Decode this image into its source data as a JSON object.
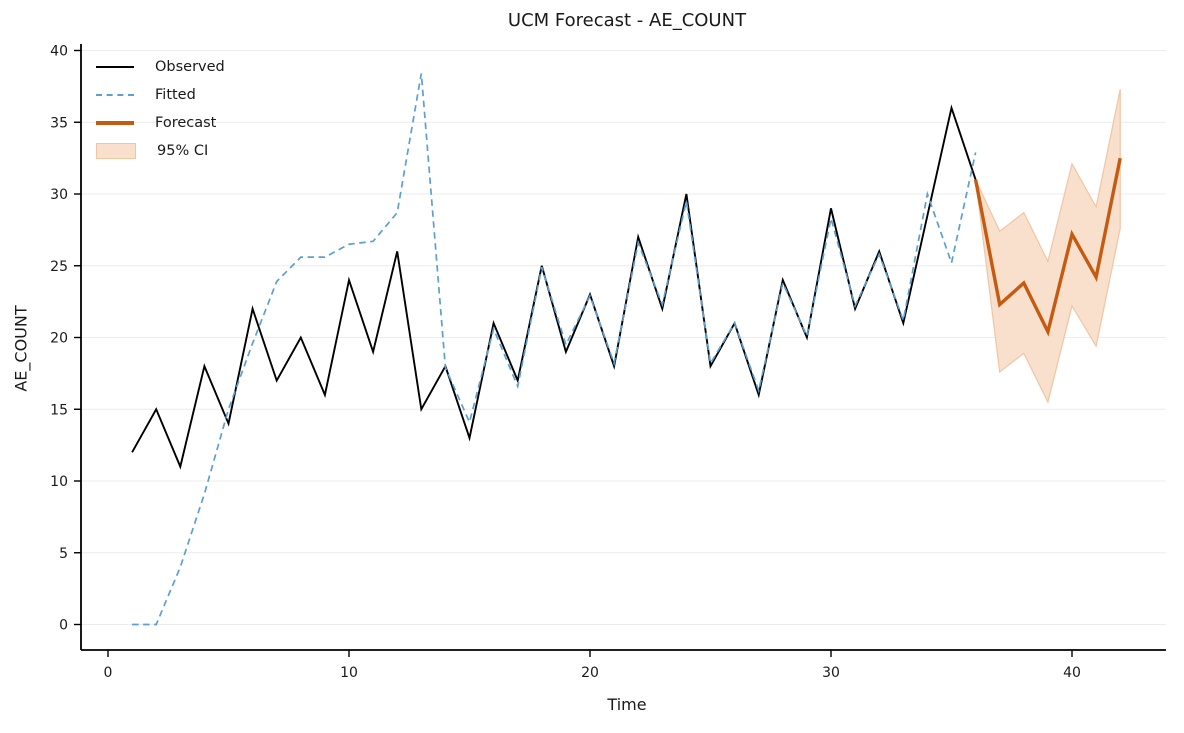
{
  "chart_data": {
    "type": "line",
    "title": "UCM Forecast - AE_COUNT",
    "xlabel": "Time",
    "ylabel": "AE_COUNT",
    "xlim": [
      -1.1,
      43.9
    ],
    "ylim": [
      -1.8,
      40.5
    ],
    "xticks": [
      0,
      10,
      20,
      30,
      40
    ],
    "yticks": [
      0,
      5,
      10,
      15,
      20,
      25,
      30,
      35,
      40
    ],
    "grid": "horizontal-only",
    "grid_color": "#ececec",
    "legend_position": "upper-left",
    "legend": {
      "entries": [
        {
          "label": "Observed",
          "swatch": "line-solid",
          "color": "#000000"
        },
        {
          "label": "Fitted",
          "swatch": "line-dashed",
          "color": "#5C9FD1"
        },
        {
          "label": "Forecast",
          "swatch": "line-solid-thick",
          "color": "#C55A11"
        },
        {
          "label": "95% CI",
          "swatch": "filled-rect",
          "color": "#F9E0CC",
          "edge_color": "#F0C5A2"
        }
      ]
    },
    "series": [
      {
        "name": "Observed",
        "kind": "line",
        "color": "#000000",
        "style": "solid",
        "width": 1.9,
        "x": [
          1,
          2,
          3,
          4,
          5,
          6,
          7,
          8,
          9,
          10,
          11,
          12,
          13,
          14,
          15,
          16,
          17,
          18,
          19,
          20,
          21,
          22,
          23,
          24,
          25,
          26,
          27,
          28,
          29,
          30,
          31,
          32,
          33,
          34,
          35,
          36
        ],
        "y": [
          12,
          15,
          11,
          18,
          14,
          22,
          17,
          20,
          16,
          24,
          19,
          26,
          15,
          18,
          13,
          21,
          17,
          25,
          19,
          23,
          18,
          27,
          22,
          30,
          18,
          21,
          16,
          24,
          20,
          29,
          22,
          26,
          21,
          28.5,
          36,
          31
        ]
      },
      {
        "name": "Fitted",
        "kind": "line",
        "color": "#5C9FD1",
        "style": "dashed",
        "width": 1.7,
        "x": [
          1,
          2,
          3,
          4,
          5,
          6,
          7,
          8,
          9,
          10,
          11,
          12,
          13,
          14,
          15,
          16,
          17,
          18,
          19,
          20,
          21,
          22,
          23,
          24,
          25,
          26,
          27,
          28,
          29,
          30,
          31,
          32,
          33,
          34,
          35,
          36
        ],
        "y": [
          0,
          0,
          4,
          9.1,
          15,
          19.6,
          23.9,
          25.6,
          25.6,
          26.5,
          26.7,
          28.7,
          38.4,
          17.9,
          14.1,
          20.6,
          16.6,
          24.9,
          19.5,
          22.9,
          18.2,
          26.6,
          22.3,
          29.5,
          18.2,
          21,
          16.3,
          23.8,
          20.1,
          28.3,
          22.2,
          25.8,
          21.2,
          30,
          25.2,
          32.9
        ]
      },
      {
        "name": "Forecast",
        "kind": "line",
        "color": "#C55A11",
        "style": "solid",
        "width": 3.4,
        "x": [
          36,
          37,
          38,
          39,
          40,
          41,
          42
        ],
        "y": [
          31,
          22.3,
          23.8,
          20.4,
          27.2,
          24.2,
          32.5
        ]
      },
      {
        "name": "95% CI",
        "kind": "band",
        "fill": "#F9E0CC",
        "edge": "#F0C5A2",
        "x": [
          36,
          37,
          38,
          39,
          40,
          41,
          42
        ],
        "upper": [
          31,
          27.4,
          28.7,
          25.3,
          32.1,
          29.1,
          37.3
        ],
        "lower": [
          31,
          17.6,
          18.9,
          15.5,
          22.2,
          19.4,
          27.6
        ]
      }
    ]
  }
}
